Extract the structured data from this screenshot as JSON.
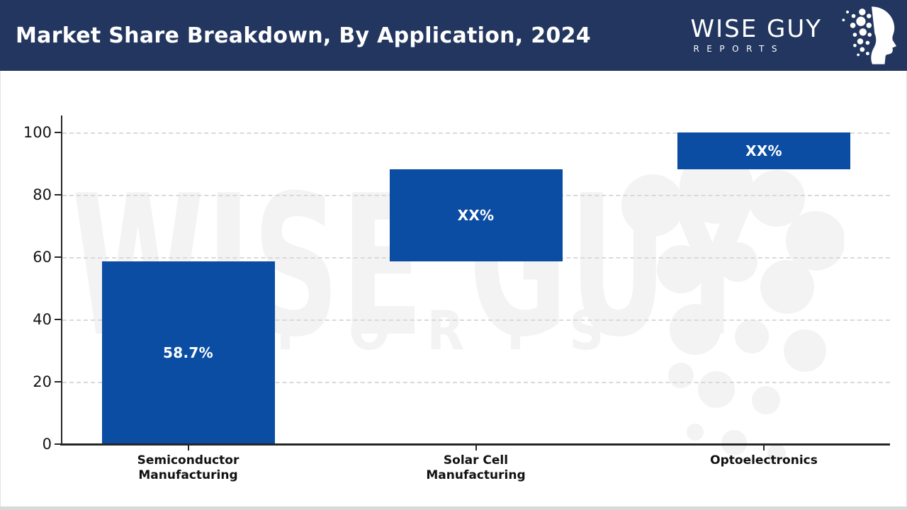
{
  "header": {
    "title": "Market Share Breakdown, By Application, 2024"
  },
  "logo": {
    "wordmark": "WISE GUY",
    "reports": "REPORTS"
  },
  "watermark": {
    "line1": "WISE GUY",
    "line2": "REPORTS"
  },
  "colors": {
    "header_bg": "#22365f",
    "bar": "#0b4da2",
    "bar_label": "#ffffff",
    "axis": "#262626",
    "gridline": "#d9d9d9",
    "watermark": "#f3f3f3",
    "footer_strip": "#d9d9d9"
  },
  "chart_data": {
    "type": "bar",
    "subtype": "waterfall",
    "title": "Market Share Breakdown, By Application, 2024",
    "xlabel": "",
    "ylabel": "",
    "categories": [
      "Semiconductor Manufacturing",
      "Solar Cell Manufacturing",
      "Optoelectronics"
    ],
    "category_label_lines": [
      [
        "Semiconductor",
        "Manufacturing"
      ],
      [
        "Solar Cell",
        "Manufacturing"
      ],
      [
        "Optoelectronics"
      ]
    ],
    "segments": [
      {
        "category": "Semiconductor Manufacturing",
        "start": 0,
        "end": 58.7,
        "label": "58.7%"
      },
      {
        "category": "Solar Cell Manufacturing",
        "start": 58.7,
        "end": 88.2,
        "label": "XX%"
      },
      {
        "category": "Optoelectronics",
        "start": 88.2,
        "end": 100,
        "label": "XX%"
      }
    ],
    "yticks": [
      0,
      20,
      40,
      60,
      80,
      100
    ],
    "ylim": [
      0,
      105
    ],
    "grid": "horizontal-dashed",
    "legend": "none"
  }
}
